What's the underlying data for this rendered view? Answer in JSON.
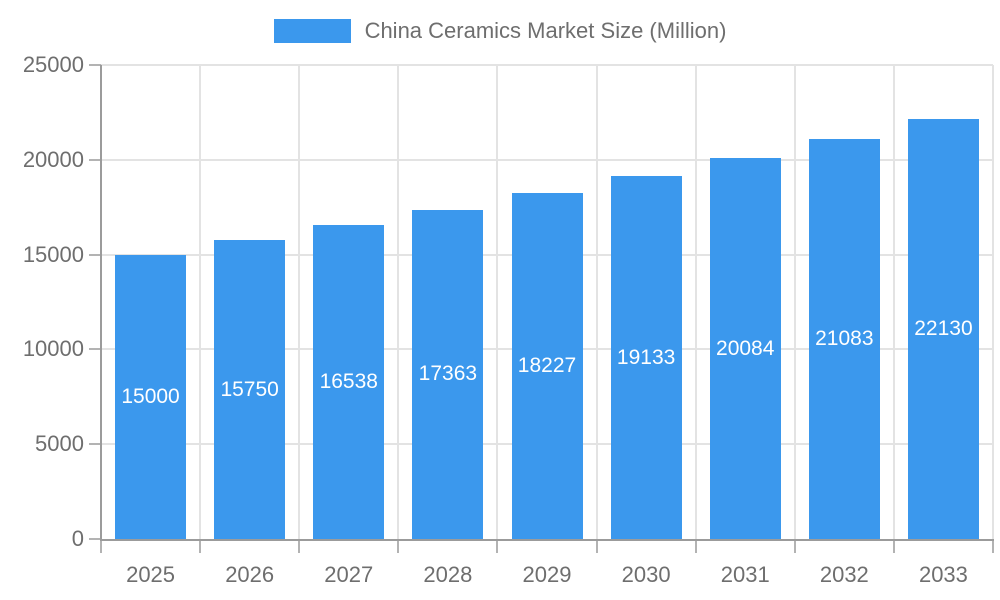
{
  "chart_data": {
    "type": "bar",
    "title": "China Ceramics Market Size (Million)",
    "categories": [
      "2025",
      "2026",
      "2027",
      "2028",
      "2029",
      "2030",
      "2031",
      "2032",
      "2033"
    ],
    "values": [
      15000,
      15750,
      16538,
      17363,
      18227,
      19133,
      20084,
      21083,
      22130
    ],
    "value_labels": [
      "15000",
      "15750",
      "16538",
      "17363",
      "18227",
      "19133",
      "20084",
      "21083",
      "22130"
    ],
    "xlabel": "",
    "ylabel": "",
    "ylim": [
      0,
      25000
    ],
    "yticks": [
      0,
      5000,
      10000,
      15000,
      20000,
      25000
    ],
    "grid": "on",
    "legend_position": "top-center",
    "bar_color": "#3b98ed",
    "value_label_color": "#ffffff",
    "axis_text_color": "#6e6e6e"
  }
}
